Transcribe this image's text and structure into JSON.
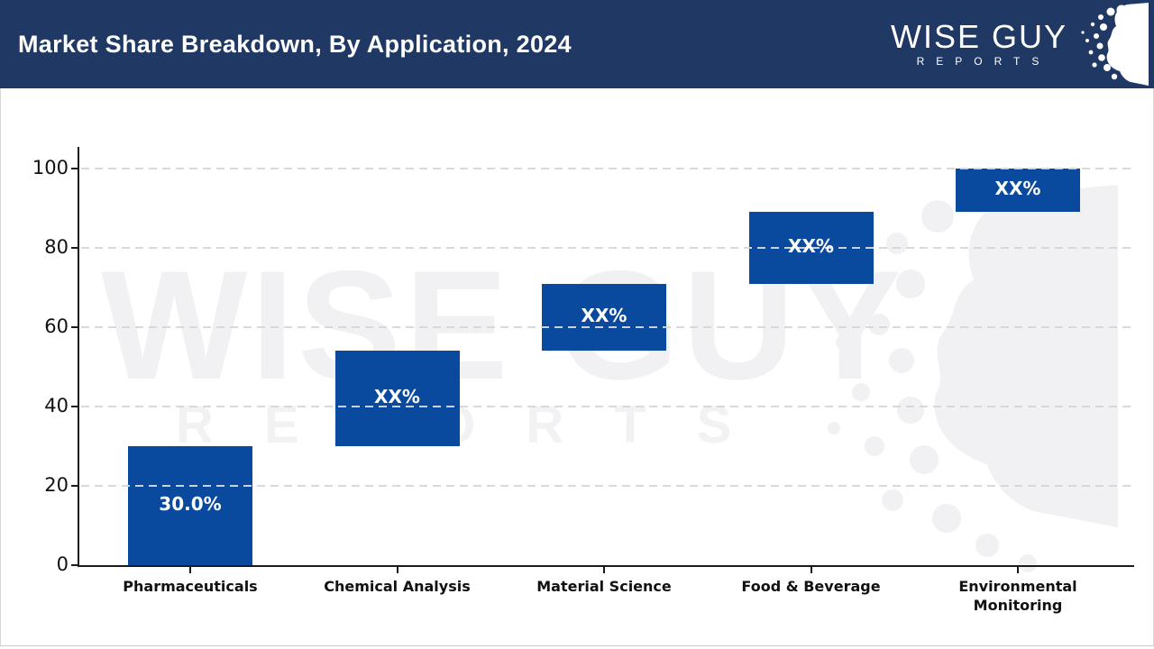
{
  "header": {
    "title": "Market Share Breakdown, By Application, 2024",
    "background": "#1f3864",
    "logo": {
      "line1": "WISE GUY",
      "line2": "REPORTS"
    }
  },
  "watermark": {
    "line1": "WISE GUY",
    "line2": "REPORTS"
  },
  "chart_data": {
    "type": "bar",
    "subtype": "waterfall",
    "title": "Market Share Breakdown, By Application, 2024",
    "categories": [
      "Pharmaceuticals",
      "Chemical Analysis",
      "Material Science",
      "Food & Beverage",
      "Environmental Monitoring"
    ],
    "segments": [
      {
        "category": "Pharmaceuticals",
        "start": 0,
        "end": 30,
        "label": "30.0%"
      },
      {
        "category": "Chemical Analysis",
        "start": 30,
        "end": 54,
        "label": "XX%"
      },
      {
        "category": "Material Science",
        "start": 54,
        "end": 71,
        "label": "XX%"
      },
      {
        "category": "Food & Beverage",
        "start": 71,
        "end": 89,
        "label": "XX%"
      },
      {
        "category": "Environmental Monitoring",
        "start": 89,
        "end": 100,
        "label": "XX%"
      }
    ],
    "xlabel": "",
    "ylabel": "",
    "yticks": [
      0,
      20,
      40,
      60,
      80,
      100
    ],
    "ylim": [
      0,
      105
    ],
    "grid": "horizontal-dashed",
    "legend": "none",
    "bar_color": "#0a4a9e",
    "label_color": "#ffffff",
    "axis_color": "#1a1a1a",
    "gridline_color": "#d7d7da"
  }
}
